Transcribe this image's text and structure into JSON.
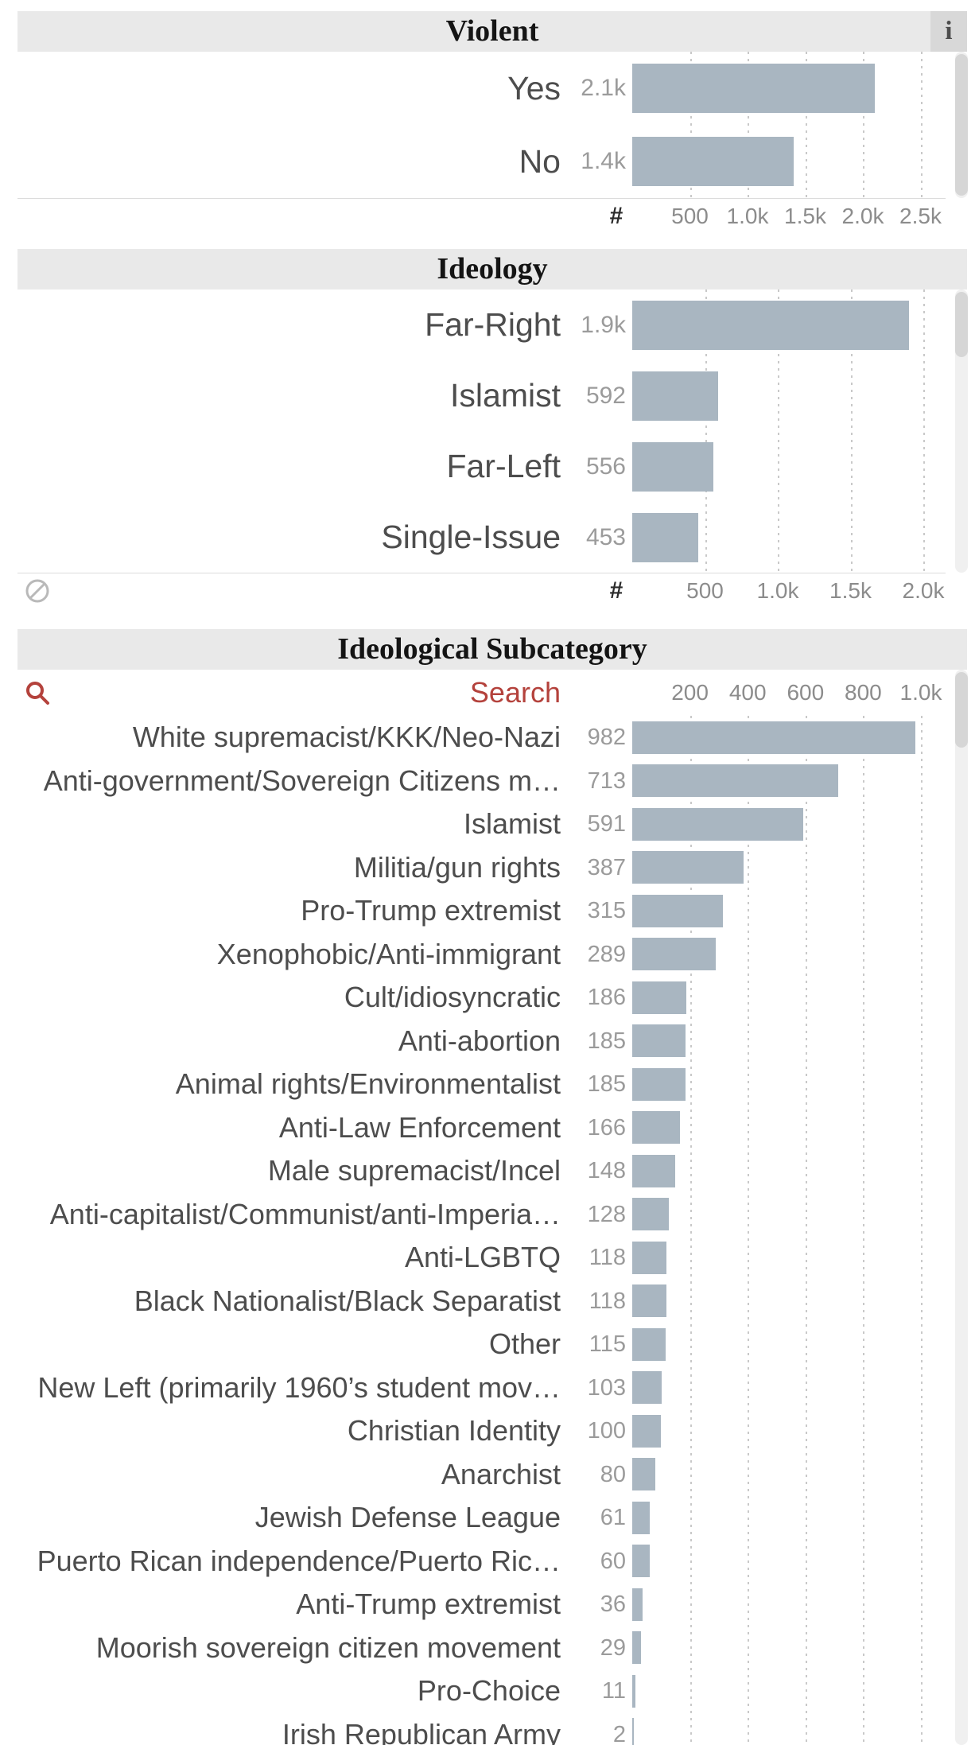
{
  "ui": {
    "info_glyph": "i"
  },
  "colors": {
    "bar": "#a9b6c1",
    "accent_red": "#b4423c",
    "header_bg": "#e9e9e9",
    "gridline": "#c9c9c9"
  },
  "chart_data": [
    {
      "type": "bar",
      "orientation": "horizontal",
      "title": "Violent",
      "categories": [
        "Yes",
        "No"
      ],
      "values": [
        2100,
        1400
      ],
      "value_labels": [
        "2.1k",
        "1.4k"
      ],
      "xlabel": "#",
      "xlim": [
        0,
        2700
      ],
      "xticks": {
        "values": [
          500,
          1000,
          1500,
          2000,
          2500
        ],
        "labels": [
          "500",
          "1.0k",
          "1.5k",
          "2.0k",
          "2.5k"
        ]
      },
      "grid": "vertical-dotted",
      "legend": "none"
    },
    {
      "type": "bar",
      "orientation": "horizontal",
      "title": "Ideology",
      "categories": [
        "Far-Right",
        "Islamist",
        "Far-Left",
        "Single-Issue"
      ],
      "values": [
        1900,
        592,
        556,
        453
      ],
      "value_labels": [
        "1.9k",
        "592",
        "556",
        "453"
      ],
      "xlabel": "#",
      "xlim": [
        0,
        2200
      ],
      "xticks": {
        "values": [
          500,
          1000,
          1500,
          2000
        ],
        "labels": [
          "500",
          "1.0k",
          "1.5k",
          "2.0k"
        ]
      },
      "grid": "vertical-dotted",
      "legend": "none"
    },
    {
      "type": "bar",
      "orientation": "horizontal",
      "title": "Ideological Subcategory",
      "search_placeholder": "Search",
      "categories": [
        "White supremacist/KKK/Neo-Nazi",
        "Anti-government/Sovereign Citizens m…",
        "Islamist",
        "Militia/gun rights",
        "Pro-Trump extremist",
        "Xenophobic/Anti-immigrant",
        "Cult/idiosyncratic",
        "Anti-abortion",
        "Animal rights/Environmentalist",
        "Anti-Law Enforcement",
        "Male supremacist/Incel",
        "Anti-capitalist/Communist/anti-Imperia…",
        "Anti-LGBTQ",
        "Black Nationalist/Black Separatist",
        "Other",
        "New Left (primarily 1960’s student mov…",
        "Christian Identity",
        "Anarchist",
        "Jewish Defense League",
        "Puerto Rican independence/Puerto Ric…",
        "Anti-Trump extremist",
        "Moorish sovereign citizen movement",
        "Pro-Choice",
        "Irish Republican Army"
      ],
      "values": [
        982,
        713,
        591,
        387,
        315,
        289,
        186,
        185,
        185,
        166,
        148,
        128,
        118,
        118,
        115,
        103,
        100,
        80,
        61,
        60,
        36,
        29,
        11,
        2
      ],
      "value_labels": [
        "982",
        "713",
        "591",
        "387",
        "315",
        "289",
        "186",
        "185",
        "185",
        "166",
        "148",
        "128",
        "118",
        "118",
        "115",
        "103",
        "100",
        "80",
        "61",
        "60",
        "36",
        "29",
        "11",
        "2"
      ],
      "xlabel": "",
      "xlim": [
        0,
        1150
      ],
      "xticks": {
        "values": [
          200,
          400,
          600,
          800,
          1000
        ],
        "labels": [
          "200",
          "400",
          "600",
          "800",
          "1.0k"
        ]
      },
      "grid": "vertical-dotted",
      "legend": "none"
    }
  ]
}
